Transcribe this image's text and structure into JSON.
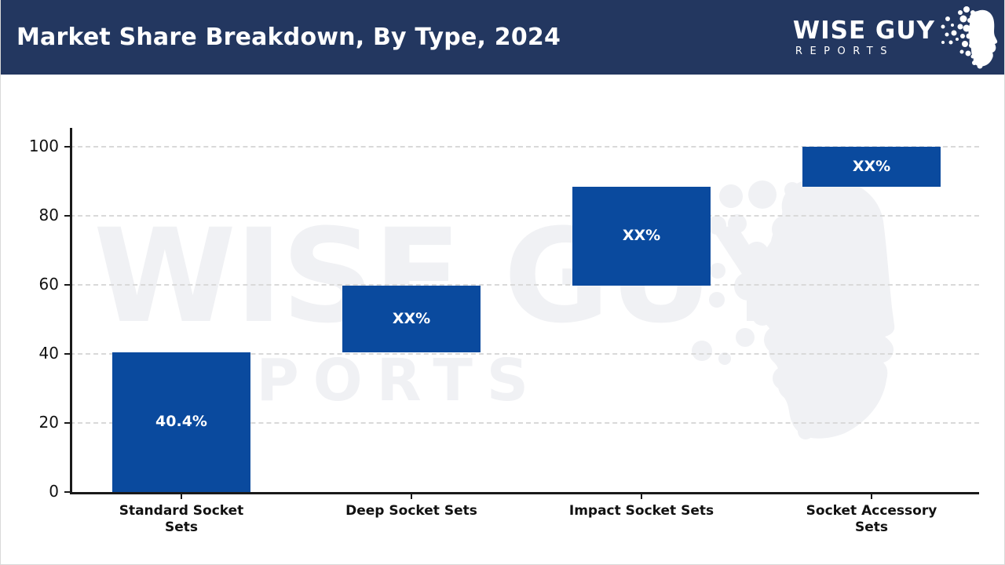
{
  "header": {
    "title": "Market Share Breakdown, By Type, 2024",
    "logo": {
      "brand": "WISE GUY",
      "sub": "REPORTS"
    }
  },
  "watermark": {
    "brand": "WISE GUY",
    "sub": "REPORTS"
  },
  "icons": {
    "logo_head": "dotted-face-profile",
    "watermark_head": "dotted-face-profile"
  },
  "colors": {
    "header_bg": "#233760",
    "bar_fill": "#0a4a9e",
    "grid_line": "#d9d9d9",
    "axis_line": "#1a1a1a",
    "tick_label": "#111111",
    "bar_label": "#ffffff",
    "watermark": "#f0f1f4"
  },
  "chart_data": {
    "type": "bar",
    "subtype": "waterfall",
    "title": "Market Share Breakdown, By Type, 2024",
    "categories": [
      "Standard Socket Sets",
      "Deep Socket Sets",
      "Impact Socket Sets",
      "Socket Accessory Sets"
    ],
    "series": [
      {
        "name": "Market Share (%)",
        "segments": [
          {
            "category": "Standard Socket Sets",
            "start": 0,
            "end": 40.4,
            "label": "40.4%"
          },
          {
            "category": "Deep Socket Sets",
            "start": 40.4,
            "end": 59.7,
            "label": "XX%"
          },
          {
            "category": "Impact Socket Sets",
            "start": 59.7,
            "end": 88.3,
            "label": "XX%"
          },
          {
            "category": "Socket Accessory Sets",
            "start": 88.3,
            "end": 100,
            "label": "XX%"
          }
        ]
      }
    ],
    "ylim": [
      0,
      100
    ],
    "yticks": [
      0,
      20,
      40,
      60,
      80,
      100
    ],
    "xlabel": "",
    "ylabel": "",
    "grid": "horizontal-dashed",
    "legend": "none"
  }
}
